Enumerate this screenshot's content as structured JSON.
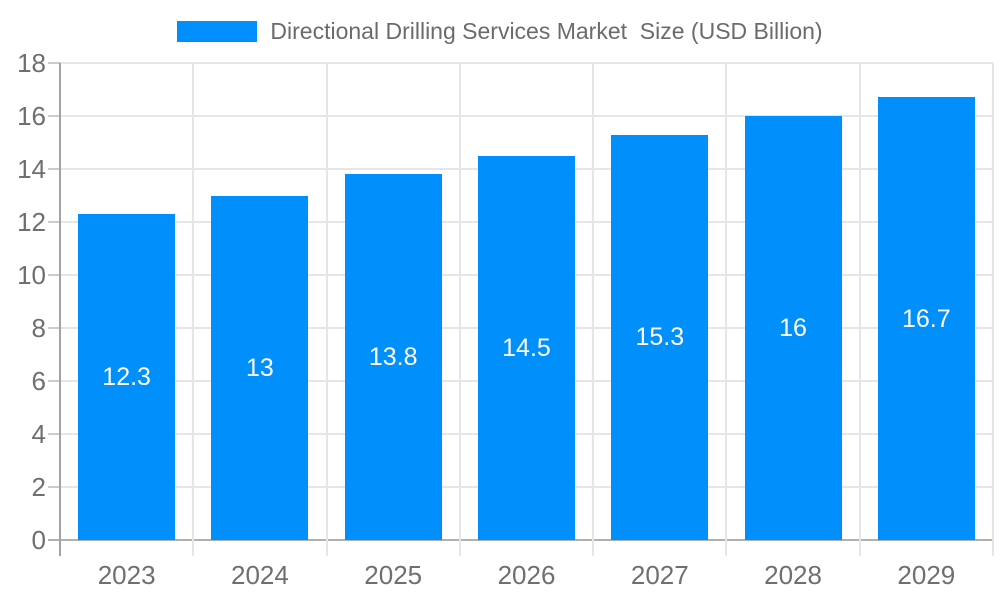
{
  "page": {
    "background": "#ffffff"
  },
  "legend": {
    "label": "Directional Drilling Services Market  Size (USD Billion)",
    "position": "top"
  },
  "colors": {
    "bar": "#008FFB",
    "grid": "#e6e6e6",
    "axis_line": "#a3a3a3",
    "baseline": "#b0b0b0",
    "tick_mark": "#cccccc",
    "tick_label": "#6f6f6f",
    "title_text": "#6b6b6b",
    "value_label": "#ffffff",
    "background": "#ffffff"
  },
  "chart_data": {
    "type": "bar",
    "title": "Directional Drilling Services Market  Size (USD Billion)",
    "categories": [
      "2023",
      "2024",
      "2025",
      "2026",
      "2027",
      "2028",
      "2029"
    ],
    "values": [
      12.3,
      13,
      13.8,
      14.5,
      15.3,
      16,
      16.7
    ],
    "value_labels": [
      "12.3",
      "13",
      "13.8",
      "14.5",
      "15.3",
      "16",
      "16.7"
    ],
    "series": [
      {
        "name": "Directional Drilling Services Market  Size (USD Billion)",
        "values": [
          12.3,
          13,
          13.8,
          14.5,
          15.3,
          16,
          16.7
        ]
      }
    ],
    "xlabel": "",
    "ylabel": "",
    "ylim": [
      0,
      18
    ],
    "ytick_step": 2,
    "yticks": [
      0,
      2,
      4,
      6,
      8,
      10,
      12,
      14,
      16,
      18
    ],
    "grid": true,
    "legend_position": "top",
    "bar_color": "#008FFB",
    "value_label_position": "middle"
  }
}
